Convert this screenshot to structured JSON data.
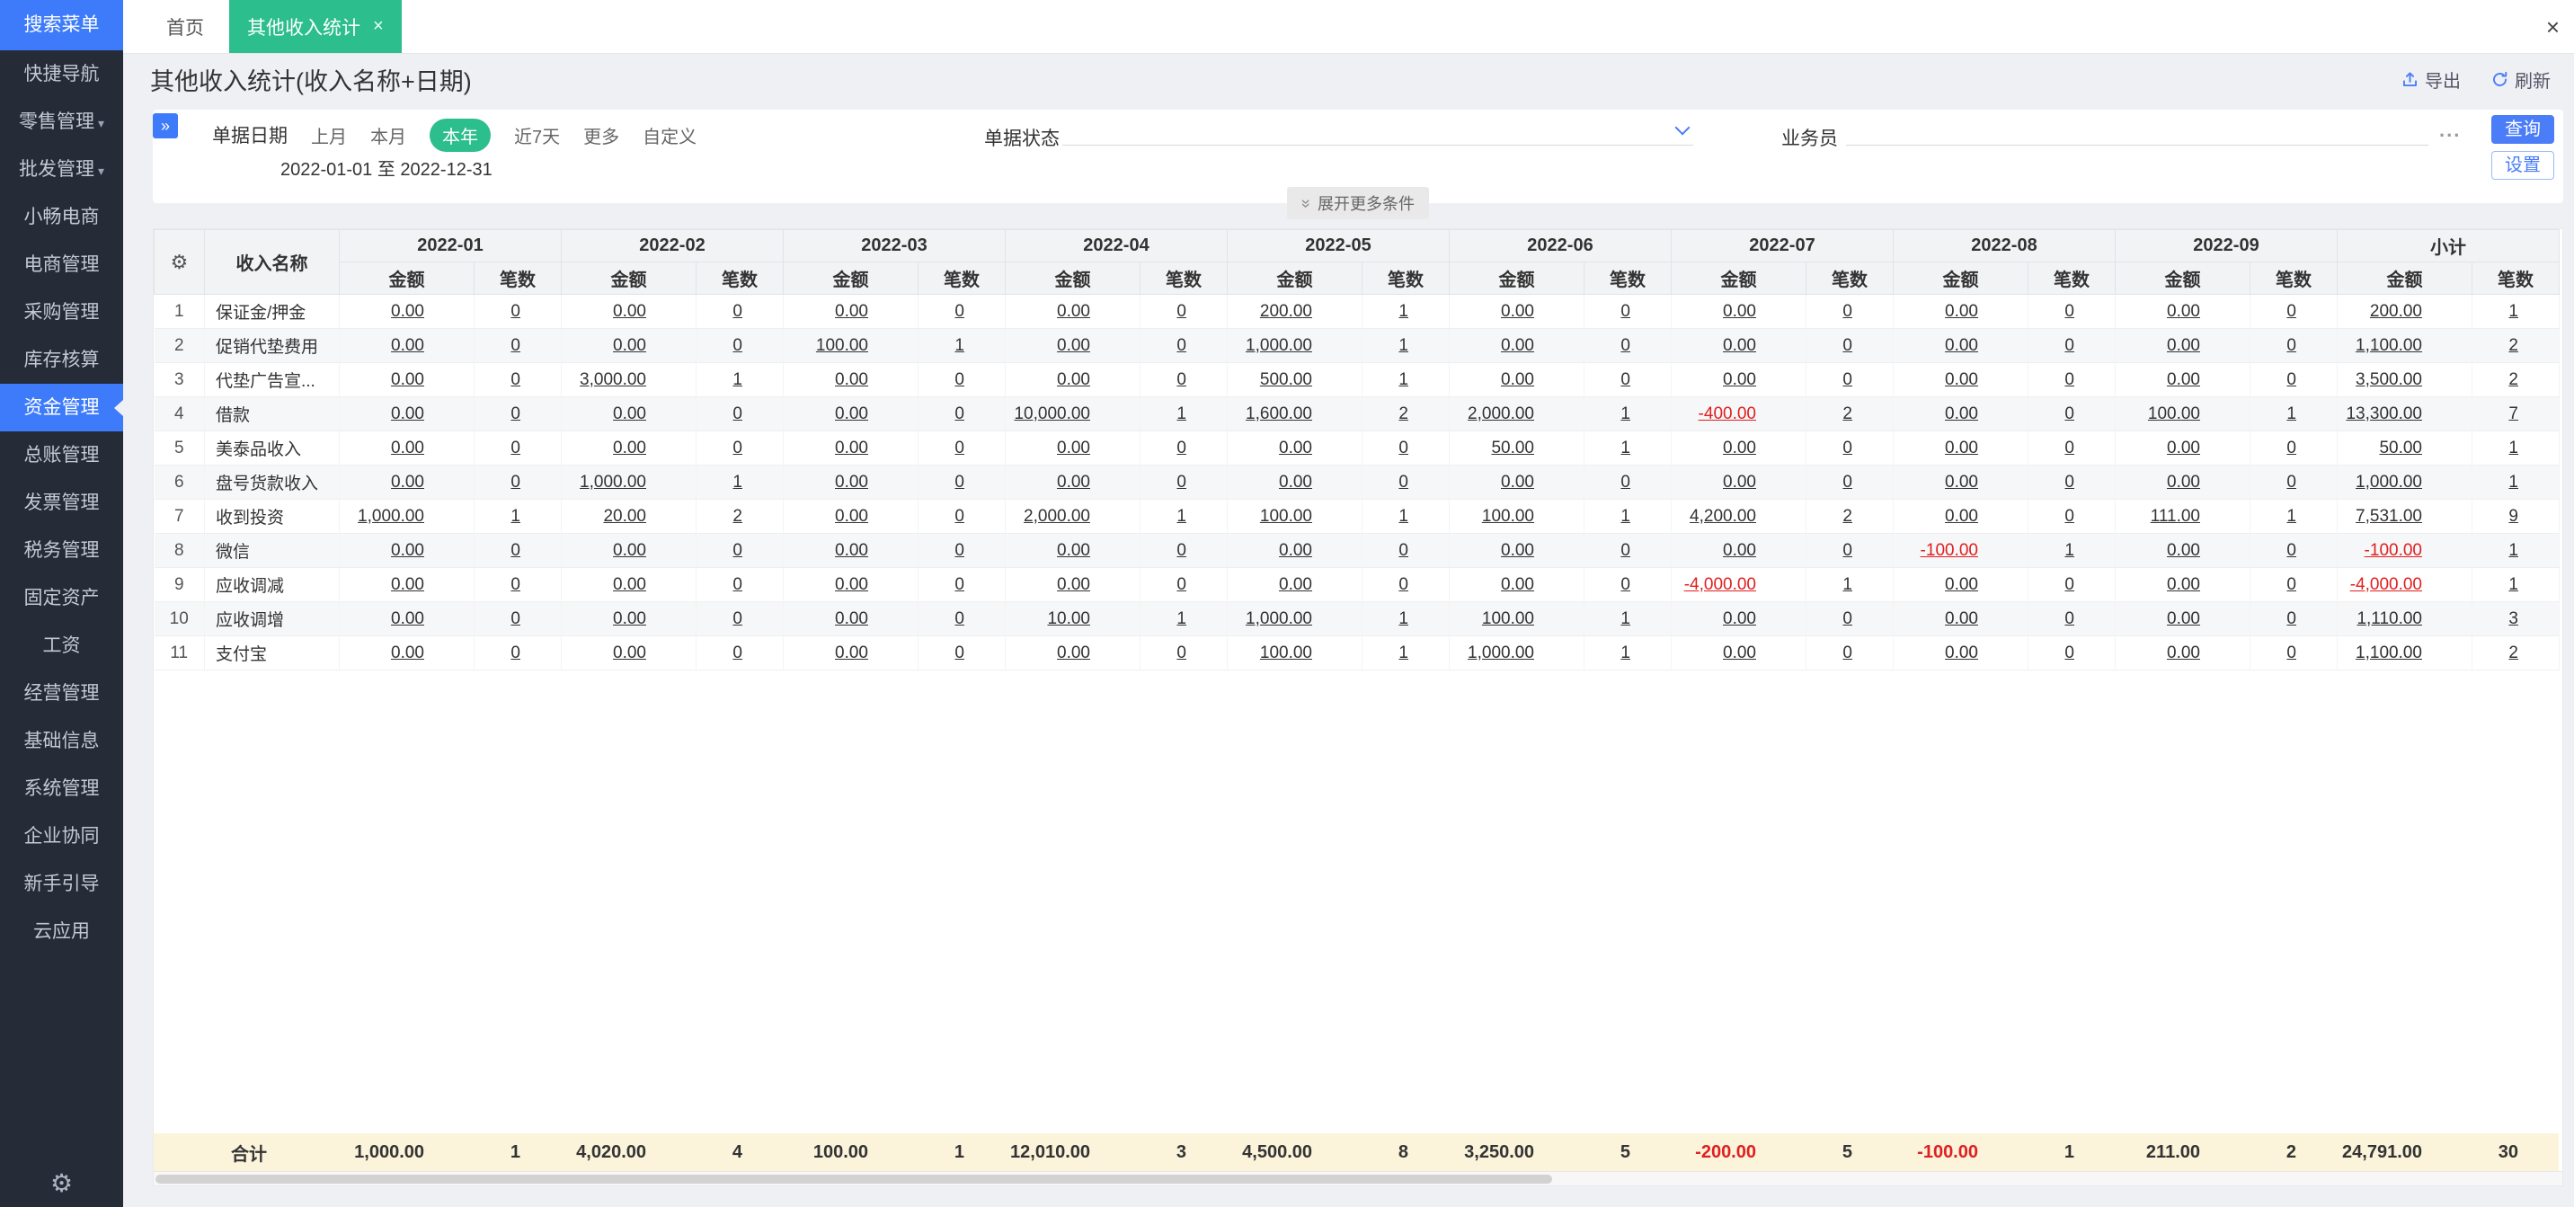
{
  "colors": {
    "accent_blue": "#3e7bfa",
    "active_tab_green": "#2cbe8c",
    "negative_red": "#e02020",
    "totals_row_bg": "#fbf3da",
    "sidebar_bg": "#262b38"
  },
  "sidebar": {
    "search_item": "搜索菜单",
    "items": [
      {
        "label": "快捷导航",
        "expandable": false,
        "active": false
      },
      {
        "label": "零售管理",
        "expandable": true,
        "active": false
      },
      {
        "label": "批发管理",
        "expandable": true,
        "active": false
      },
      {
        "label": "小畅电商",
        "expandable": false,
        "active": false
      },
      {
        "label": "电商管理",
        "expandable": false,
        "active": false
      },
      {
        "label": "采购管理",
        "expandable": false,
        "active": false
      },
      {
        "label": "库存核算",
        "expandable": false,
        "active": false
      },
      {
        "label": "资金管理",
        "expandable": false,
        "active": true
      },
      {
        "label": "总账管理",
        "expandable": false,
        "active": false
      },
      {
        "label": "发票管理",
        "expandable": false,
        "active": false
      },
      {
        "label": "税务管理",
        "expandable": false,
        "active": false
      },
      {
        "label": "固定资产",
        "expandable": false,
        "active": false
      },
      {
        "label": "工资",
        "expandable": false,
        "active": false
      },
      {
        "label": "经营管理",
        "expandable": false,
        "active": false
      },
      {
        "label": "基础信息",
        "expandable": false,
        "active": false
      },
      {
        "label": "系统管理",
        "expandable": false,
        "active": false
      },
      {
        "label": "企业协同",
        "expandable": false,
        "active": false
      },
      {
        "label": "新手引导",
        "expandable": false,
        "active": false
      },
      {
        "label": "云应用",
        "expandable": false,
        "active": false
      }
    ]
  },
  "tabs": [
    {
      "label": "首页",
      "active": false
    },
    {
      "label": "其他收入统计",
      "active": true,
      "close": "×"
    }
  ],
  "window": {
    "close": "×"
  },
  "page": {
    "title": "其他收入统计(收入名称+日期)",
    "actions": {
      "export": "导出",
      "refresh": "刷新"
    }
  },
  "filters": {
    "date_label": "单据日期",
    "quick_options": [
      "上月",
      "本月",
      "本年",
      "近7天",
      "更多",
      "自定义"
    ],
    "selected_quick": "本年",
    "date_range": "2022-01-01 至 2022-12-31",
    "status_label": "单据状态",
    "status_value": "",
    "salesman_label": "业务员",
    "salesman_value": "",
    "salesman_more": "...",
    "query_button": "查询",
    "settings_button": "设置",
    "expand_more": "展开更多条件",
    "collapse_glyph": "»"
  },
  "table": {
    "name_header": "收入名称",
    "amount_header": "金额",
    "count_header": "笔数",
    "gear_icon": "⚙",
    "months": [
      "2022-01",
      "2022-02",
      "2022-03",
      "2022-04",
      "2022-05",
      "2022-06",
      "2022-07",
      "2022-08",
      "2022-09",
      "小计"
    ],
    "rows": [
      {
        "name": "保证金/押金",
        "cells": [
          [
            "0.00",
            "0"
          ],
          [
            "0.00",
            "0"
          ],
          [
            "0.00",
            "0"
          ],
          [
            "0.00",
            "0"
          ],
          [
            "200.00",
            "1"
          ],
          [
            "0.00",
            "0"
          ],
          [
            "0.00",
            "0"
          ],
          [
            "0.00",
            "0"
          ],
          [
            "0.00",
            "0"
          ],
          [
            "200.00",
            "1"
          ]
        ]
      },
      {
        "name": "促销代垫费用",
        "cells": [
          [
            "0.00",
            "0"
          ],
          [
            "0.00",
            "0"
          ],
          [
            "100.00",
            "1"
          ],
          [
            "0.00",
            "0"
          ],
          [
            "1,000.00",
            "1"
          ],
          [
            "0.00",
            "0"
          ],
          [
            "0.00",
            "0"
          ],
          [
            "0.00",
            "0"
          ],
          [
            "0.00",
            "0"
          ],
          [
            "1,100.00",
            "2"
          ]
        ]
      },
      {
        "name": "代垫广告宣...",
        "cells": [
          [
            "0.00",
            "0"
          ],
          [
            "3,000.00",
            "1"
          ],
          [
            "0.00",
            "0"
          ],
          [
            "0.00",
            "0"
          ],
          [
            "500.00",
            "1"
          ],
          [
            "0.00",
            "0"
          ],
          [
            "0.00",
            "0"
          ],
          [
            "0.00",
            "0"
          ],
          [
            "0.00",
            "0"
          ],
          [
            "3,500.00",
            "2"
          ]
        ]
      },
      {
        "name": "借款",
        "cells": [
          [
            "0.00",
            "0"
          ],
          [
            "0.00",
            "0"
          ],
          [
            "0.00",
            "0"
          ],
          [
            "10,000.00",
            "1"
          ],
          [
            "1,600.00",
            "2"
          ],
          [
            "2,000.00",
            "1"
          ],
          [
            "-400.00",
            "2"
          ],
          [
            "0.00",
            "0"
          ],
          [
            "100.00",
            "1"
          ],
          [
            "13,300.00",
            "7"
          ]
        ]
      },
      {
        "name": "美泰品收入",
        "cells": [
          [
            "0.00",
            "0"
          ],
          [
            "0.00",
            "0"
          ],
          [
            "0.00",
            "0"
          ],
          [
            "0.00",
            "0"
          ],
          [
            "0.00",
            "0"
          ],
          [
            "50.00",
            "1"
          ],
          [
            "0.00",
            "0"
          ],
          [
            "0.00",
            "0"
          ],
          [
            "0.00",
            "0"
          ],
          [
            "50.00",
            "1"
          ]
        ]
      },
      {
        "name": "盘号货款收入",
        "cells": [
          [
            "0.00",
            "0"
          ],
          [
            "1,000.00",
            "1"
          ],
          [
            "0.00",
            "0"
          ],
          [
            "0.00",
            "0"
          ],
          [
            "0.00",
            "0"
          ],
          [
            "0.00",
            "0"
          ],
          [
            "0.00",
            "0"
          ],
          [
            "0.00",
            "0"
          ],
          [
            "0.00",
            "0"
          ],
          [
            "1,000.00",
            "1"
          ]
        ]
      },
      {
        "name": "收到投资",
        "cells": [
          [
            "1,000.00",
            "1"
          ],
          [
            "20.00",
            "2"
          ],
          [
            "0.00",
            "0"
          ],
          [
            "2,000.00",
            "1"
          ],
          [
            "100.00",
            "1"
          ],
          [
            "100.00",
            "1"
          ],
          [
            "4,200.00",
            "2"
          ],
          [
            "0.00",
            "0"
          ],
          [
            "111.00",
            "1"
          ],
          [
            "7,531.00",
            "9"
          ]
        ]
      },
      {
        "name": "微信",
        "cells": [
          [
            "0.00",
            "0"
          ],
          [
            "0.00",
            "0"
          ],
          [
            "0.00",
            "0"
          ],
          [
            "0.00",
            "0"
          ],
          [
            "0.00",
            "0"
          ],
          [
            "0.00",
            "0"
          ],
          [
            "0.00",
            "0"
          ],
          [
            "-100.00",
            "1"
          ],
          [
            "0.00",
            "0"
          ],
          [
            "-100.00",
            "1"
          ]
        ]
      },
      {
        "name": "应收调减",
        "cells": [
          [
            "0.00",
            "0"
          ],
          [
            "0.00",
            "0"
          ],
          [
            "0.00",
            "0"
          ],
          [
            "0.00",
            "0"
          ],
          [
            "0.00",
            "0"
          ],
          [
            "0.00",
            "0"
          ],
          [
            "-4,000.00",
            "1"
          ],
          [
            "0.00",
            "0"
          ],
          [
            "0.00",
            "0"
          ],
          [
            "-4,000.00",
            "1"
          ]
        ]
      },
      {
        "name": "应收调增",
        "cells": [
          [
            "0.00",
            "0"
          ],
          [
            "0.00",
            "0"
          ],
          [
            "0.00",
            "0"
          ],
          [
            "10.00",
            "1"
          ],
          [
            "1,000.00",
            "1"
          ],
          [
            "100.00",
            "1"
          ],
          [
            "0.00",
            "0"
          ],
          [
            "0.00",
            "0"
          ],
          [
            "0.00",
            "0"
          ],
          [
            "1,110.00",
            "3"
          ]
        ]
      },
      {
        "name": "支付宝",
        "cells": [
          [
            "0.00",
            "0"
          ],
          [
            "0.00",
            "0"
          ],
          [
            "0.00",
            "0"
          ],
          [
            "0.00",
            "0"
          ],
          [
            "100.00",
            "1"
          ],
          [
            "1,000.00",
            "1"
          ],
          [
            "0.00",
            "0"
          ],
          [
            "0.00",
            "0"
          ],
          [
            "0.00",
            "0"
          ],
          [
            "1,100.00",
            "2"
          ]
        ]
      }
    ],
    "total_label": "合计",
    "totals": [
      [
        "1,000.00",
        "1"
      ],
      [
        "4,020.00",
        "4"
      ],
      [
        "100.00",
        "1"
      ],
      [
        "12,010.00",
        "3"
      ],
      [
        "4,500.00",
        "8"
      ],
      [
        "3,250.00",
        "5"
      ],
      [
        "-200.00",
        "5"
      ],
      [
        "-100.00",
        "1"
      ],
      [
        "211.00",
        "2"
      ],
      [
        "24,791.00",
        "30"
      ]
    ]
  }
}
